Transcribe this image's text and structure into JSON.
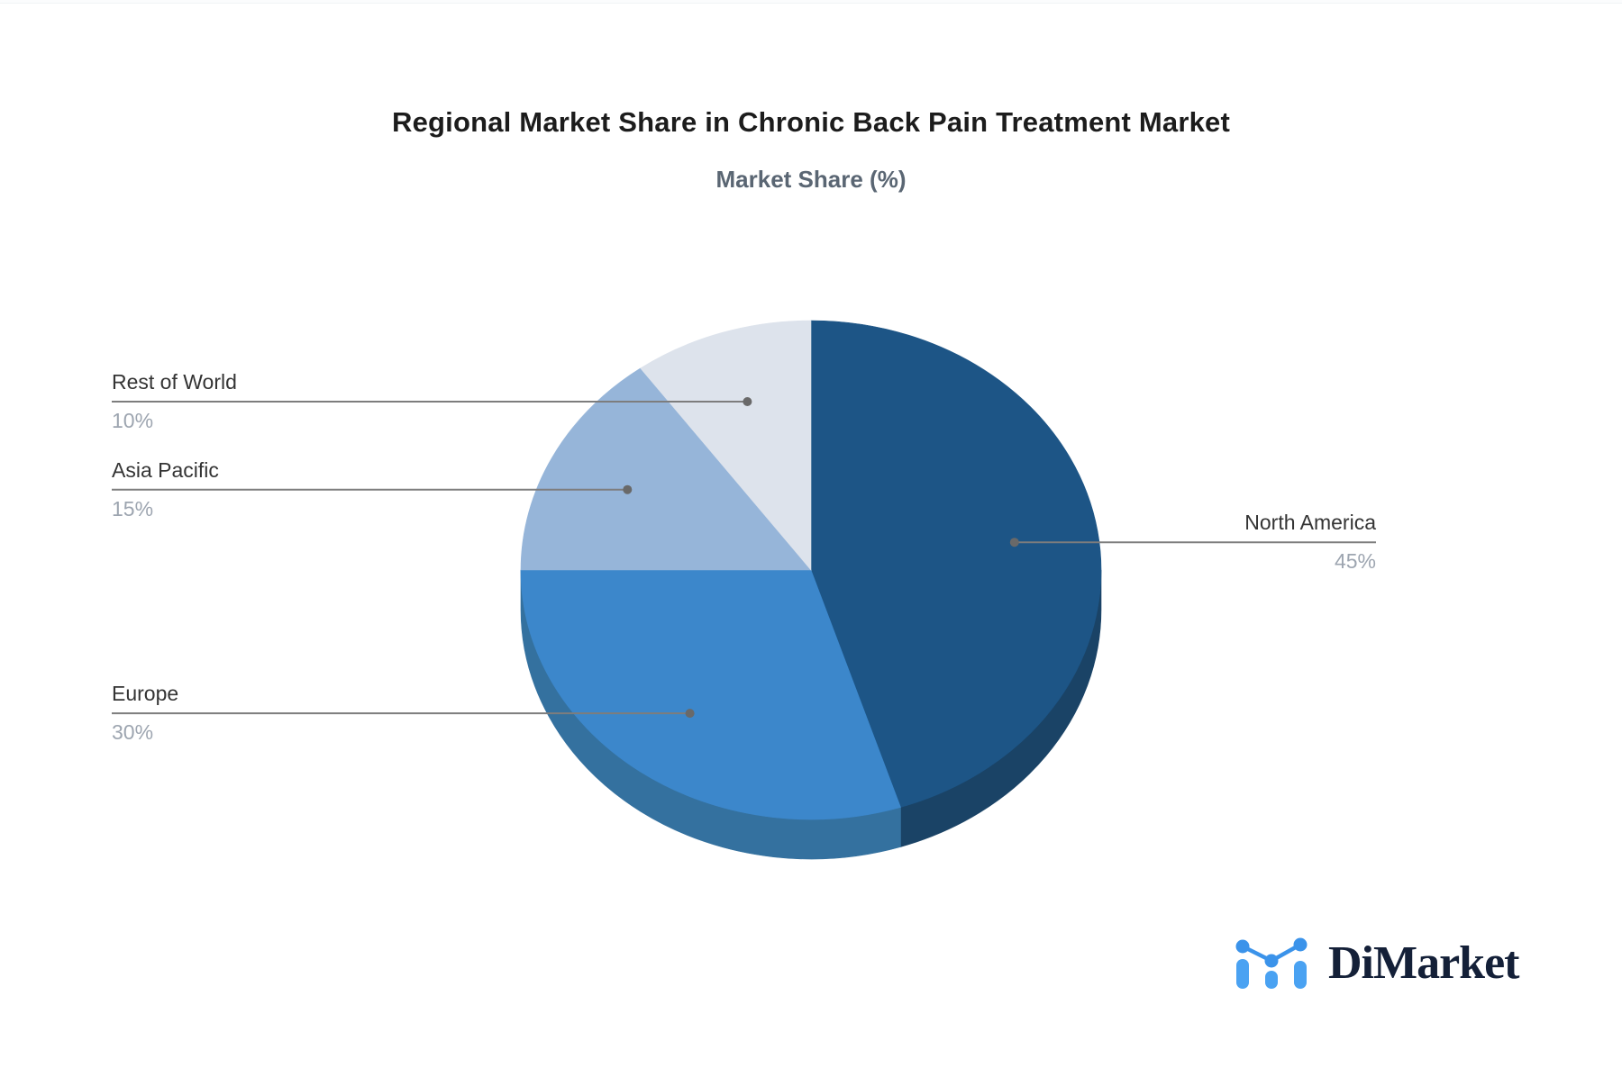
{
  "page": {
    "background": "#ffffff"
  },
  "chart_data": {
    "type": "pie",
    "title": "Regional Market Share in Chronic Back Pain Treatment Market",
    "subtitle": "Market Share (%)",
    "unit": "%",
    "style": "3d-pie",
    "legend_position": "callout-labels",
    "label_colors": {
      "name": "#343434",
      "value": "#9da5b0",
      "leader_line": "#7d7d7d",
      "leader_dot": "#696969"
    },
    "slices": [
      {
        "label": "North America",
        "value": 45,
        "value_label": "45%",
        "color": "#1d5586",
        "side_color": "#1a4366"
      },
      {
        "label": "Europe",
        "value": 30,
        "value_label": "30%",
        "color": "#3c87cb",
        "side_color": "#34719f"
      },
      {
        "label": "Asia Pacific",
        "value": 15,
        "value_label": "15%",
        "color": "#96b5d9",
        "side_color": "#7fa3c9"
      },
      {
        "label": "Rest of World",
        "value": 10,
        "value_label": "10%",
        "color": "#dde3ec",
        "side_color": "#c4cfde"
      }
    ],
    "start_angle_deg": 0,
    "direction": "clockwise"
  },
  "logo": {
    "text": "DiMarket",
    "text_color": "#142038",
    "icon": "bar-chart-trend-icon",
    "icon_bar_color": "#4aa2f2",
    "icon_line_color": "#3b93ea"
  }
}
